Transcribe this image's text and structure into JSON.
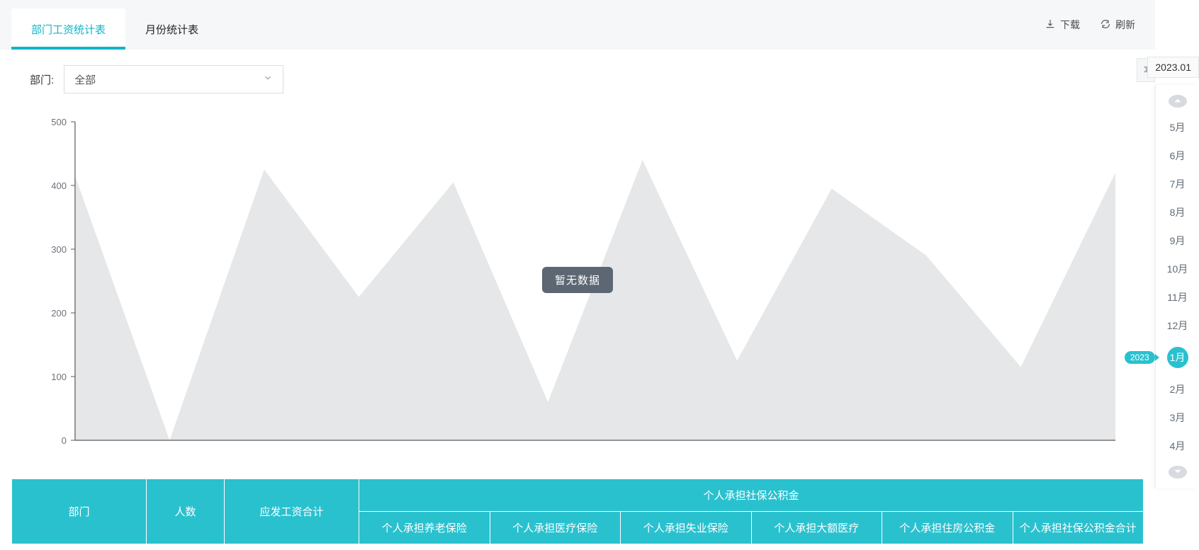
{
  "colors": {
    "accent": "#0fb5c9",
    "teal_header": "#2ac1cf",
    "chart_fill": "#e5e7e8",
    "axis": "#5a5a5a",
    "text": "#333333",
    "pill_bg": "#5d6773",
    "page_bg": "#ffffff",
    "tab_bar_bg": "#f5f7f8"
  },
  "tabs": {
    "items": [
      {
        "label": "部门工资统计表",
        "active": true
      },
      {
        "label": "月份统计表",
        "active": false
      }
    ]
  },
  "toolbar": {
    "download_label": "下载",
    "refresh_label": "刷新"
  },
  "filter": {
    "label": "部门:",
    "selected": "全部"
  },
  "chart": {
    "type": "area",
    "no_data_label": "暂无数据",
    "ylim": [
      0,
      500
    ],
    "ytick_step": 100,
    "yticks": [
      0,
      100,
      200,
      300,
      400,
      500
    ],
    "values": [
      415,
      0,
      425,
      225,
      405,
      60,
      440,
      125,
      395,
      290,
      115,
      420
    ],
    "fill_color": "#e5e7e8",
    "axis_color": "#5a5a5a",
    "label_fontsize": 13,
    "background_color": "#ffffff"
  },
  "table": {
    "group_header": "个人承担社保公积金",
    "columns_left": [
      "部门",
      "人数",
      "应发工资合计"
    ],
    "columns_sub": [
      "个人承担养老保险",
      "个人承担医疗保险",
      "个人承担失业保险",
      "个人承担大额医疗",
      "个人承担住房公积金",
      "个人承担社保公积金合计"
    ]
  },
  "timeline": {
    "banner": "2023.01",
    "year_badge": "2023",
    "months": [
      {
        "label": "5月",
        "selected": false
      },
      {
        "label": "6月",
        "selected": false
      },
      {
        "label": "7月",
        "selected": false
      },
      {
        "label": "8月",
        "selected": false
      },
      {
        "label": "9月",
        "selected": false
      },
      {
        "label": "10月",
        "selected": false
      },
      {
        "label": "11月",
        "selected": false
      },
      {
        "label": "12月",
        "selected": false
      },
      {
        "label": "1月",
        "selected": true,
        "show_year_badge": true
      },
      {
        "label": "2月",
        "selected": false
      },
      {
        "label": "3月",
        "selected": false
      },
      {
        "label": "4月",
        "selected": false
      }
    ]
  }
}
